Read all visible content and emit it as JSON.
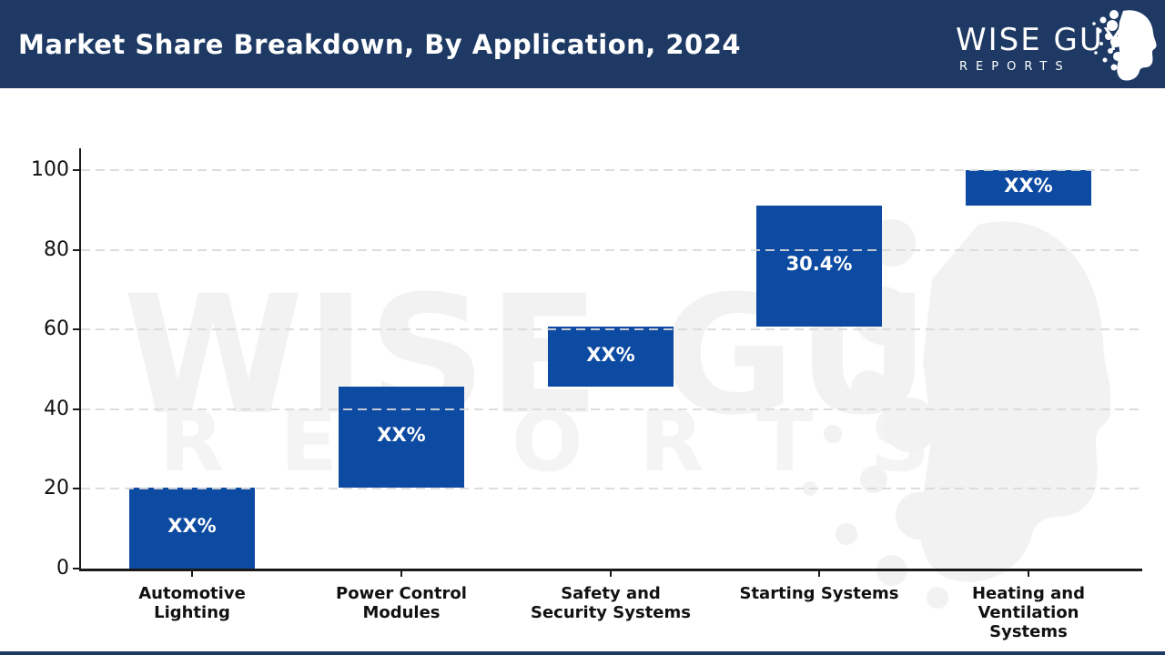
{
  "header": {
    "title": "Market Share Breakdown, By Application, 2024",
    "background_color": "#1e3a64",
    "logo": {
      "line1": "WISE GUY",
      "line2": "REPORTS"
    }
  },
  "watermark": {
    "line1": "WISE GUY",
    "line2": "REPORTS"
  },
  "chart_data": {
    "type": "bar",
    "subtype": "floating-segment-waterfall",
    "title": "Market Share Breakdown, By Application, 2024",
    "categories": [
      "Automotive Lighting",
      "Power Control Modules",
      "Safety and Security Systems",
      "Starting Systems",
      "Heating and Ventilation Systems"
    ],
    "bars": [
      {
        "category": "Automotive Lighting",
        "lines": [
          "Automotive",
          "Lighting"
        ],
        "label": "XX%",
        "start": 0,
        "end": 20.4
      },
      {
        "category": "Power Control Modules",
        "lines": [
          "Power Control",
          "Modules"
        ],
        "label": "XX%",
        "start": 20.4,
        "end": 45.6
      },
      {
        "category": "Safety and Security Systems",
        "lines": [
          "Safety and",
          "Security Systems"
        ],
        "label": "XX%",
        "start": 45.6,
        "end": 60.8
      },
      {
        "category": "Starting Systems",
        "lines": [
          "Starting Systems"
        ],
        "label": "30.4%",
        "start": 60.8,
        "end": 91.2
      },
      {
        "category": "Heating and Ventilation Systems",
        "lines": [
          "Heating and",
          "Ventilation",
          "Systems"
        ],
        "label": "XX%",
        "start": 91.2,
        "end": 100
      }
    ],
    "y_ticks": [
      0,
      20,
      40,
      60,
      80,
      100
    ],
    "ylim": [
      0,
      100
    ],
    "grid": "horizontal dashed, drawn over bars",
    "legend": "none",
    "bar_color": "#0d4aa1",
    "grid_color": "#d9d9d9",
    "axis_color": "#1a1a1a"
  }
}
